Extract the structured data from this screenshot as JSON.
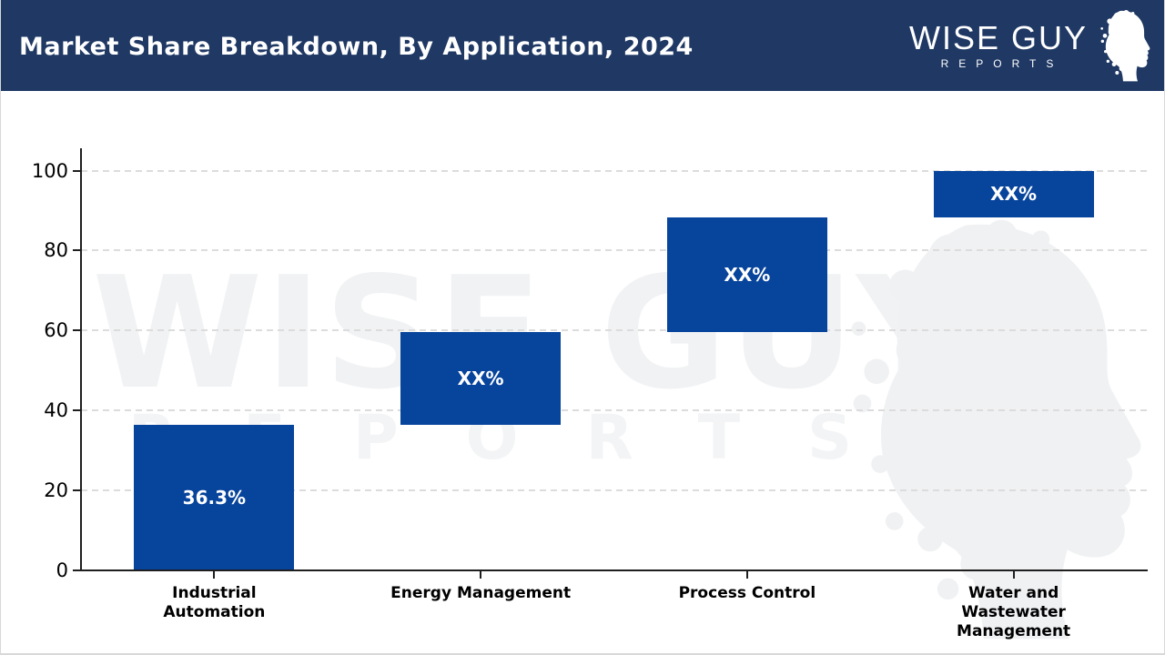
{
  "header": {
    "title": "Market Share Breakdown, By Application, 2024",
    "bg_color": "#1f3864",
    "logo": {
      "line1": "WISE GUY",
      "line2": "REPORTS"
    }
  },
  "watermark": {
    "line1": "WISE GUY",
    "line2": "REPORTS"
  },
  "chart_data": {
    "type": "bar",
    "variant": "waterfall",
    "title": "Market Share Breakdown, By Application, 2024",
    "categories": [
      "Industrial\nAutomation",
      "Energy Management",
      "Process Control",
      "Water and\nWastewater\nManagement"
    ],
    "bars": [
      {
        "category": "Industrial Automation",
        "start": 0,
        "end": 36.3,
        "label": "36.3%"
      },
      {
        "category": "Energy Management",
        "start": 36.3,
        "end": 59.7,
        "label": "XX%"
      },
      {
        "category": "Process Control",
        "start": 59.7,
        "end": 88.2,
        "label": "XX%"
      },
      {
        "category": "Water and Wastewater Management",
        "start": 88.2,
        "end": 100,
        "label": "XX%"
      }
    ],
    "ylim": [
      0,
      100
    ],
    "yticks": [
      0,
      20,
      40,
      60,
      80,
      100
    ],
    "xlabel": "",
    "ylabel": "",
    "grid": "horizontal-dashed",
    "legend": "none",
    "colors": {
      "bar": "#07449c",
      "bar_label": "#ffffff",
      "grid": "#dcdcdc",
      "axis": "#1f1f1f",
      "tick_label": "#000000"
    }
  }
}
